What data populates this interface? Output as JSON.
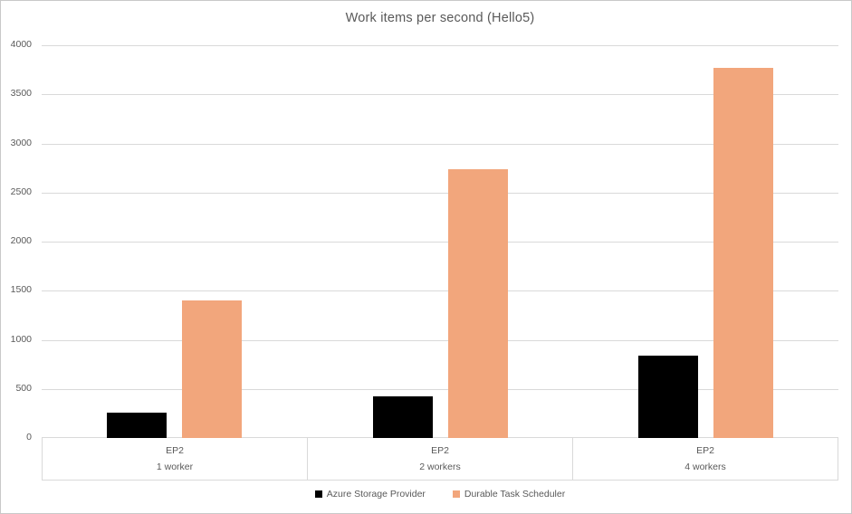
{
  "chart_data": {
    "type": "bar",
    "title": "Work items per second (Hello5)",
    "xlabel": "",
    "ylabel": "",
    "grid": true,
    "legend_position": "bottom",
    "y_axis": {
      "min": 0,
      "max": 4000,
      "step": 500,
      "tick_labels": [
        "0",
        "500",
        "1000",
        "1500",
        "2000",
        "2500",
        "3000",
        "3500",
        "4000"
      ]
    },
    "groups": [
      {
        "label_top": "EP2",
        "label_bottom": "1 worker"
      },
      {
        "label_top": "EP2",
        "label_bottom": "2 workers"
      },
      {
        "label_top": "EP2",
        "label_bottom": "4 workers"
      }
    ],
    "series": [
      {
        "name": "Azure Storage Provider",
        "color": "#000000",
        "values": [
          260,
          420,
          835
        ]
      },
      {
        "name": "Durable Task Scheduler",
        "color": "#f2a67c",
        "values": [
          1400,
          2740,
          3770
        ]
      }
    ]
  },
  "colors": {
    "gridline": "#d9d9d9",
    "axis_border": "#d9d9d9",
    "text": "#595959",
    "frame_border": "#c9c9c9",
    "background": "#ffffff"
  }
}
